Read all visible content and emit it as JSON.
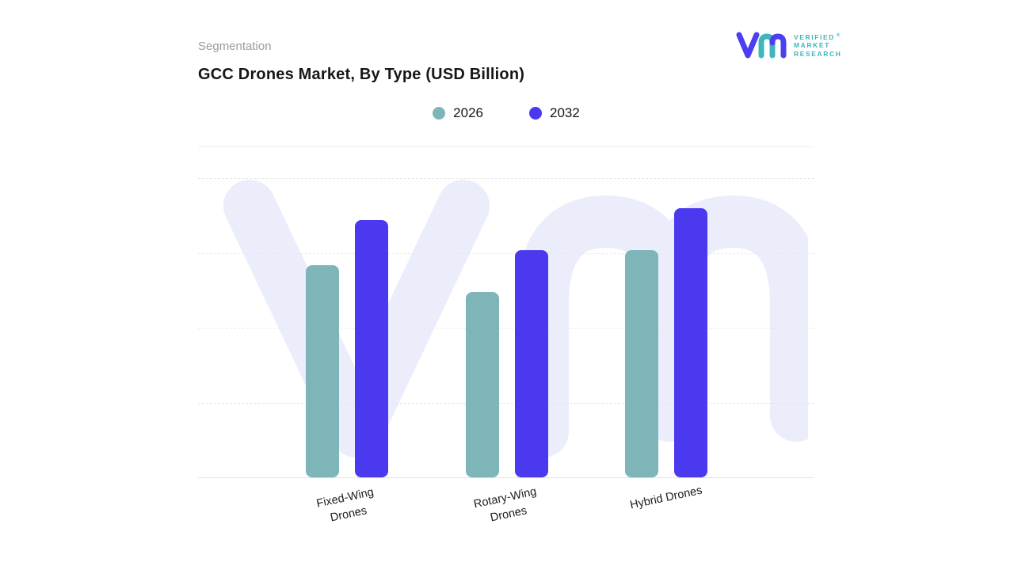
{
  "page": {
    "eyebrow": "Segmentation",
    "title": "GCC Drones Market, By Type (USD Billion)"
  },
  "logo": {
    "brand_lines": [
      "VERIFIED",
      "MARKET",
      "RESEARCH"
    ],
    "registered_mark": "®",
    "teal": "#3db6bc",
    "purple": "#4c3ef1"
  },
  "legend": [
    {
      "label": "2026",
      "color": "#7db5b8"
    },
    {
      "label": "2032",
      "color": "#4b39f0"
    }
  ],
  "chart_data": {
    "type": "bar",
    "title": "GCC Drones Market, By Type (USD Billion)",
    "categories": [
      "Fixed-Wing Drones",
      "Rotary-Wing Drones",
      "Hybrid Drones"
    ],
    "series": [
      {
        "name": "2026",
        "color": "#7db5b8",
        "values": [
          7.1,
          6.2,
          7.6
        ]
      },
      {
        "name": "2032",
        "color": "#4b39f0",
        "values": [
          8.6,
          7.6,
          9.0
        ]
      }
    ],
    "xlabel": "",
    "ylabel": "",
    "ylim": [
      0,
      10
    ],
    "y_axis_labels_visible": false,
    "grid": "horizontal-dashed",
    "legend_position": "top-center",
    "watermark_color": "#ebedfb"
  }
}
